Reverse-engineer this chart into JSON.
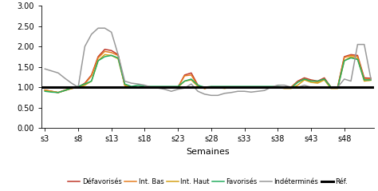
{
  "x_labels": [
    "s3",
    "s8",
    "s13",
    "s18",
    "s23",
    "s28",
    "s33",
    "s38",
    "s43",
    "s48"
  ],
  "x_tick_pos": [
    0,
    5,
    10,
    15,
    20,
    25,
    30,
    35,
    40,
    45
  ],
  "ylim": [
    0.0,
    3.0
  ],
  "yticks": [
    0.0,
    0.5,
    1.0,
    1.5,
    2.0,
    2.5,
    3.0
  ],
  "xlabel": "Semaines",
  "legend_labels": [
    "Défavorisés",
    "Int. Bas",
    "Int. Haut",
    "Favorisés",
    "Indéterminés",
    "Réf."
  ],
  "series_colors": [
    "#c0392b",
    "#e67e22",
    "#d4a017",
    "#27ae60",
    "#999999",
    "#000000"
  ],
  "defavorises": [
    0.93,
    0.9,
    0.87,
    0.93,
    0.97,
    1.0,
    1.1,
    1.3,
    1.75,
    1.93,
    1.9,
    1.8,
    1.05,
    1.0,
    1.0,
    1.0,
    1.0,
    1.0,
    1.0,
    1.0,
    1.0,
    1.3,
    1.35,
    1.05,
    0.97,
    1.0,
    1.0,
    1.0,
    1.0,
    1.0,
    1.0,
    1.0,
    1.0,
    1.0,
    1.0,
    1.0,
    1.0,
    1.0,
    1.15,
    1.23,
    1.18,
    1.15,
    1.23,
    1.0,
    1.0,
    1.75,
    1.8,
    1.78,
    1.23,
    1.22
  ],
  "int_bas": [
    0.93,
    0.9,
    0.87,
    0.92,
    0.97,
    1.0,
    1.08,
    1.28,
    1.72,
    1.88,
    1.85,
    1.78,
    1.05,
    1.0,
    1.0,
    1.0,
    1.0,
    1.0,
    1.0,
    1.0,
    1.0,
    1.28,
    1.3,
    1.03,
    0.97,
    1.01,
    1.0,
    1.0,
    1.0,
    1.0,
    1.0,
    1.0,
    1.0,
    1.0,
    1.0,
    1.0,
    1.0,
    1.0,
    1.13,
    1.2,
    1.16,
    1.13,
    1.2,
    1.0,
    1.0,
    1.73,
    1.78,
    1.75,
    1.2,
    1.2
  ],
  "int_haut": [
    0.92,
    0.89,
    0.87,
    0.92,
    0.97,
    1.0,
    1.05,
    1.15,
    1.65,
    1.8,
    1.78,
    1.7,
    1.05,
    1.0,
    1.0,
    1.0,
    1.0,
    1.0,
    1.0,
    1.0,
    1.0,
    1.15,
    1.18,
    1.02,
    0.97,
    1.0,
    1.0,
    0.97,
    1.0,
    1.0,
    1.0,
    1.0,
    1.0,
    1.0,
    1.0,
    1.0,
    0.97,
    0.97,
    1.05,
    1.18,
    1.12,
    1.1,
    1.18,
    0.97,
    0.97,
    1.65,
    1.75,
    1.7,
    1.15,
    1.17
  ],
  "favorises": [
    0.9,
    0.88,
    0.87,
    0.92,
    0.98,
    1.02,
    1.08,
    1.15,
    1.65,
    1.75,
    1.78,
    1.72,
    1.08,
    1.02,
    1.05,
    1.02,
    1.02,
    1.02,
    1.02,
    1.02,
    1.02,
    1.15,
    1.2,
    1.05,
    1.0,
    1.02,
    1.02,
    1.02,
    1.02,
    1.02,
    1.02,
    1.02,
    1.02,
    1.02,
    1.02,
    1.02,
    1.0,
    0.98,
    1.12,
    1.2,
    1.15,
    1.15,
    1.2,
    1.0,
    0.98,
    1.65,
    1.72,
    1.68,
    1.18,
    1.18
  ],
  "indetermines": [
    1.45,
    1.4,
    1.35,
    1.22,
    1.1,
    1.0,
    2.0,
    2.3,
    2.45,
    2.45,
    2.35,
    1.8,
    1.15,
    1.1,
    1.08,
    1.05,
    1.0,
    0.98,
    0.95,
    0.9,
    0.95,
    0.98,
    1.08,
    0.9,
    0.83,
    0.8,
    0.8,
    0.85,
    0.87,
    0.9,
    0.9,
    0.88,
    0.9,
    0.92,
    1.0,
    1.05,
    1.05,
    1.0,
    1.0,
    1.05,
    1.0,
    0.98,
    1.0,
    0.98,
    1.0,
    1.2,
    1.15,
    2.05,
    2.05,
    1.2
  ]
}
